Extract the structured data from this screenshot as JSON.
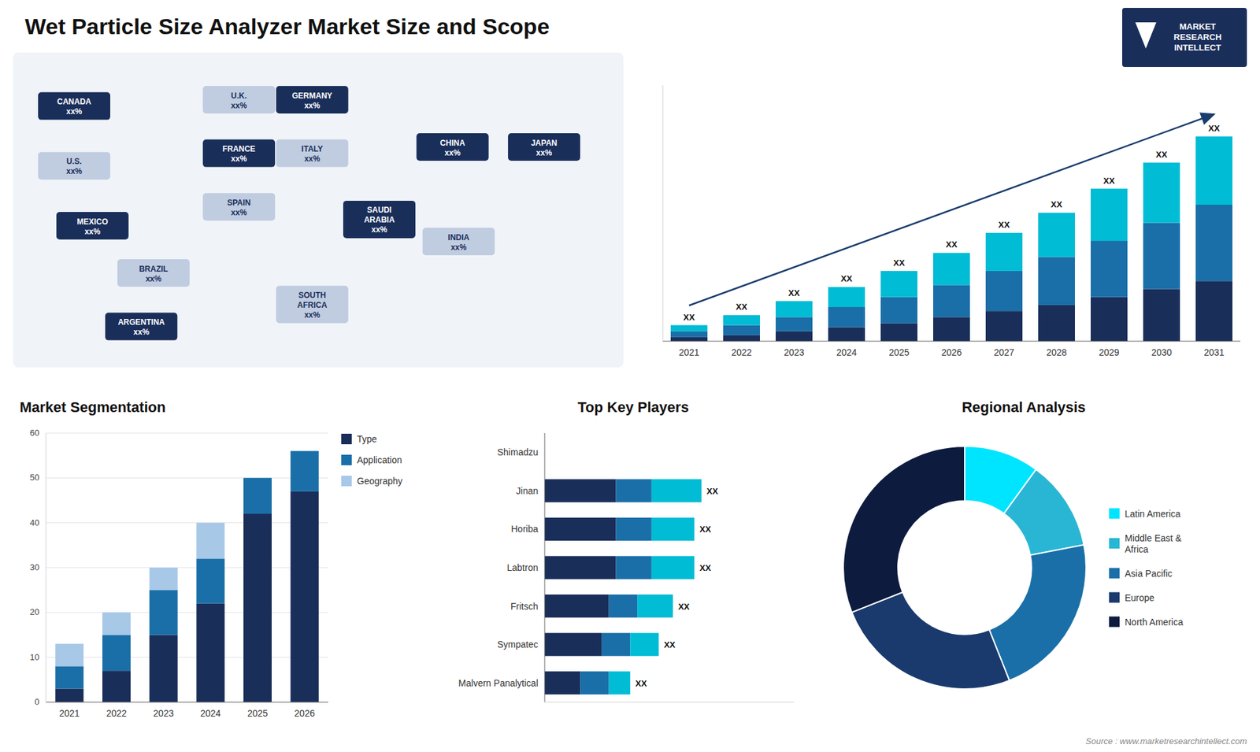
{
  "chart_data": [
    {
      "type": "map",
      "annotations": [
        "CANADA\nxx%",
        "U.S.\nxx%",
        "MEXICO\nxx%",
        "BRAZIL\nxx%",
        "ARGENTINA\nxx%",
        "U.K.\nxx%",
        "FRANCE\nxx%",
        "SPAIN\nxx%",
        "GERMANY\nxx%",
        "ITALY\nxx%",
        "SAUDI\nARABIA\nxx%",
        "SOUTH\nAFRICA\nxx%",
        "CHINA\nxx%",
        "INDIA\nxx%",
        "JAPAN\nxx%"
      ]
    },
    {
      "type": "bar",
      "title": "Wet Particle Size Analyzer Market Size and Scope",
      "subtitle": "Source : www.marketresearchintellect.com",
      "stacked": true,
      "categories": [
        "2021",
        "2022",
        "2023",
        "2024",
        "2025",
        "2026",
        "2027",
        "2028",
        "2029",
        "2030",
        "2031"
      ],
      "series": [
        {
          "color": "#1a2e5a",
          "values": [
            2,
            3,
            5,
            7,
            9,
            12,
            15,
            18,
            22,
            26,
            30
          ]
        },
        {
          "color": "#1a6fa8",
          "values": [
            3,
            5,
            7,
            10,
            13,
            16,
            20,
            24,
            28,
            33,
            38
          ]
        },
        {
          "color": "#00bcd4",
          "values": [
            3,
            5,
            8,
            10,
            13,
            16,
            19,
            22,
            26,
            30,
            34
          ]
        }
      ],
      "ylim": [
        0,
        127.5
      ],
      "tick_labels": "x",
      "annotations": [
        "XX",
        "XX",
        "XX",
        "XX",
        "XX",
        "XX",
        "XX",
        "XX",
        "XX",
        "XX",
        "XX"
      ]
    },
    {
      "type": "bar",
      "title": "Market Segmentation",
      "stacked": true,
      "categories": [
        "2021",
        "2022",
        "2023",
        "2024",
        "2025",
        "2026"
      ],
      "series": [
        {
          "name": "Type",
          "color": "#1a2e5a",
          "values": [
            3,
            7,
            15,
            22,
            42,
            47
          ]
        },
        {
          "name": "Application",
          "color": "#1a6fa8",
          "values": [
            5,
            8,
            10,
            10,
            8,
            9
          ]
        },
        {
          "name": "Geography",
          "color": "#a8c8e8",
          "values": [
            5,
            5,
            5,
            8,
            0,
            0
          ]
        }
      ],
      "ylim": [
        0,
        60
      ],
      "yticks": [
        0,
        10,
        20,
        30,
        40,
        50,
        60
      ],
      "grid": true,
      "legend": "right"
    },
    {
      "type": "bar",
      "title": "Top Key Players",
      "orientation": "horizontal",
      "stacked": true,
      "categories": [
        "Shimadzu",
        "Jinan",
        "Horiba",
        "Labtron",
        "Fritsch",
        "Sympatec",
        "Malvern Panalytical"
      ],
      "series": [
        {
          "color": "#1a2e5a",
          "values": [
            0,
            10,
            10,
            10,
            9,
            8,
            5
          ]
        },
        {
          "color": "#1a6fa8",
          "values": [
            0,
            5,
            5,
            5,
            4,
            4,
            4
          ]
        },
        {
          "color": "#00bcd4",
          "values": [
            0,
            7,
            6,
            6,
            5,
            4,
            3
          ]
        }
      ],
      "xlim": [
        0,
        35
      ],
      "tick_labels": "y",
      "annotations": [
        null,
        "XX",
        "XX",
        "XX",
        "XX",
        "XX",
        "XX"
      ]
    },
    {
      "type": "donut",
      "title": "Regional Analysis",
      "categories": [
        "Latin America",
        "Middle East &\nAfrica",
        "Asia Pacific",
        "Europe",
        "North America"
      ],
      "values": [
        10,
        12,
        22,
        25,
        31
      ],
      "colors": [
        "#00e5ff",
        "#29b6d4",
        "#1a6fa8",
        "#1a3a6e",
        "#0d1b3e"
      ],
      "legend": "right"
    },
    {
      "type": "logo",
      "title": "MARKET\nRESEARCH\nINTELLECT"
    }
  ]
}
